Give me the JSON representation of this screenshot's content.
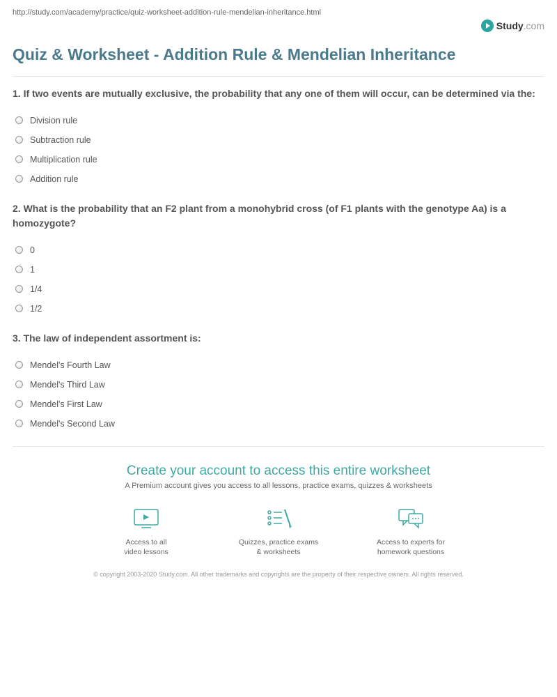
{
  "url": "http://study.com/academy/practice/quiz-worksheet-addition-rule-mendelian-inheritance.html",
  "logo": {
    "brand": "Study",
    "suffix": ".com"
  },
  "title": "Quiz & Worksheet - Addition Rule & Mendelian Inheritance",
  "colors": {
    "heading": "#4a7a8c",
    "accent": "#3fa8a3",
    "text": "#555555",
    "muted": "#999999",
    "border": "#e5e5e5"
  },
  "questions": [
    {
      "number": "1.",
      "text": "If two events are mutually exclusive, the probability that any one of them will occur, can be determined via the:",
      "options": [
        "Division rule",
        "Subtraction rule",
        "Multiplication rule",
        "Addition rule"
      ]
    },
    {
      "number": "2.",
      "text": "What is the probability that an F2 plant from a monohybrid cross (of F1 plants with the genotype Aa) is a homozygote?",
      "options": [
        "0",
        "1",
        "1/4",
        "1/2"
      ]
    },
    {
      "number": "3.",
      "text": "The law of independent assortment is:",
      "options": [
        "Mendel's Fourth Law",
        "Mendel's Third Law",
        "Mendel's First Law",
        "Mendel's Second Law"
      ]
    }
  ],
  "cta": {
    "title": "Create your account to access this entire worksheet",
    "subtitle": "A Premium account gives you access to all lessons, practice exams, quizzes & worksheets",
    "features": [
      {
        "icon": "video",
        "line1": "Access to all",
        "line2": "video lessons"
      },
      {
        "icon": "checklist",
        "line1": "Quizzes, practice exams",
        "line2": "& worksheets"
      },
      {
        "icon": "chat",
        "line1": "Access to experts for",
        "line2": "homework questions"
      }
    ]
  },
  "copyright": "© copyright 2003-2020 Study.com. All other trademarks and copyrights are the property of their respective owners. All rights reserved."
}
